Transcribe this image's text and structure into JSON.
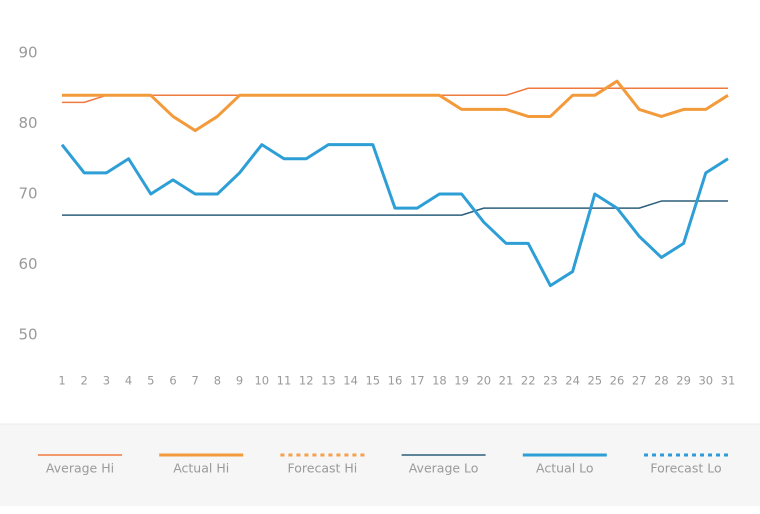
{
  "chart_data": {
    "type": "line",
    "x": [
      1,
      2,
      3,
      4,
      5,
      6,
      7,
      8,
      9,
      10,
      11,
      12,
      13,
      14,
      15,
      16,
      17,
      18,
      19,
      20,
      21,
      22,
      23,
      24,
      25,
      26,
      27,
      28,
      29,
      30,
      31
    ],
    "xlim": [
      1,
      31
    ],
    "ylim": [
      45,
      95
    ],
    "yticks": [
      50,
      60,
      70,
      80,
      90
    ],
    "grid": false,
    "legend": "bottom",
    "series": [
      {
        "name": "Average Hi",
        "color": "#ef7a3e",
        "width": 1.5,
        "dashed": false,
        "values": [
          83,
          83,
          84,
          84,
          84,
          84,
          84,
          84,
          84,
          84,
          84,
          84,
          84,
          84,
          84,
          84,
          84,
          84,
          84,
          84,
          84,
          85,
          85,
          85,
          85,
          85,
          85,
          85,
          85,
          85,
          85
        ]
      },
      {
        "name": "Actual Hi",
        "color": "#f39a3b",
        "width": 3,
        "dashed": false,
        "values": [
          84,
          84,
          84,
          84,
          84,
          81,
          79,
          81,
          84,
          84,
          84,
          84,
          84,
          84,
          84,
          84,
          84,
          84,
          82,
          82,
          82,
          81,
          81,
          84,
          84,
          86,
          82,
          81,
          82,
          82,
          84
        ]
      },
      {
        "name": "Forecast Hi",
        "color": "#f5a04a",
        "width": 3,
        "dashed": true,
        "values": [
          null,
          null,
          null,
          null,
          null,
          null,
          null,
          null,
          null,
          null,
          null,
          null,
          null,
          null,
          null,
          null,
          null,
          null,
          null,
          null,
          null,
          null,
          null,
          null,
          null,
          null,
          null,
          null,
          null,
          null,
          null
        ]
      },
      {
        "name": "Average Lo",
        "color": "#2b5f7c",
        "width": 1.5,
        "dashed": false,
        "values": [
          67,
          67,
          67,
          67,
          67,
          67,
          67,
          67,
          67,
          67,
          67,
          67,
          67,
          67,
          67,
          67,
          67,
          67,
          67,
          68,
          68,
          68,
          68,
          68,
          68,
          68,
          68,
          69,
          69,
          69,
          69
        ]
      },
      {
        "name": "Actual Lo",
        "color": "#2e9fd6",
        "width": 3,
        "dashed": false,
        "values": [
          77,
          73,
          73,
          75,
          70,
          72,
          70,
          70,
          73,
          77,
          75,
          75,
          77,
          77,
          77,
          68,
          68,
          70,
          70,
          66,
          63,
          63,
          57,
          59,
          70,
          68,
          64,
          61,
          63,
          73,
          75
        ]
      },
      {
        "name": "Forecast Lo",
        "color": "#2e9fd6",
        "width": 3,
        "dashed": true,
        "values": [
          null,
          null,
          null,
          null,
          null,
          null,
          null,
          null,
          null,
          null,
          null,
          null,
          null,
          null,
          null,
          null,
          null,
          null,
          null,
          null,
          null,
          null,
          null,
          null,
          null,
          null,
          null,
          null,
          null,
          null,
          null
        ]
      }
    ]
  }
}
